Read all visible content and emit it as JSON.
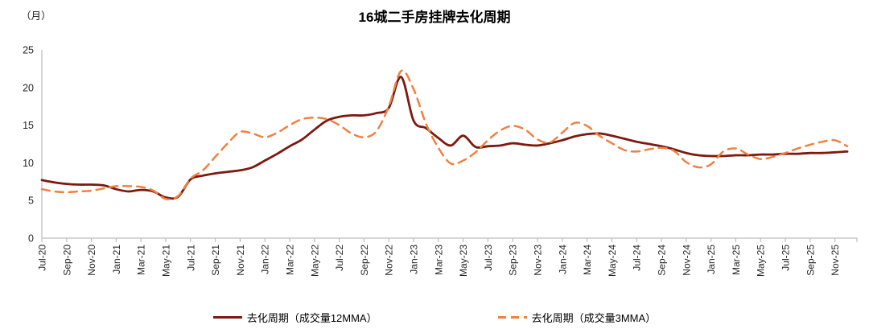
{
  "chart": {
    "title": "16城二手房挂牌去化周期",
    "unit_label": "（月）"
  },
  "colors": {
    "series_12mma": "#7B1A10",
    "series_3mma": "#EE8143",
    "axis": "#BFBFBF",
    "tick_text": "#262626",
    "title_text": "#000000"
  },
  "chart_data": {
    "type": "line",
    "title": "16城二手房挂牌去化周期",
    "xlabel": "",
    "ylabel": "（月）",
    "ylim": [
      0,
      25
    ],
    "yticks": [
      0,
      5,
      10,
      15,
      20,
      25
    ],
    "grid": false,
    "legend_position": "bottom",
    "xtick_labels": [
      "Jul-20",
      "Sep-20",
      "Nov-20",
      "Jan-21",
      "Mar-21",
      "May-21",
      "Jul-21",
      "Sep-21",
      "Nov-21",
      "Jan-22",
      "Mar-22",
      "May-22",
      "Jul-22",
      "Sep-22",
      "Nov-22",
      "Jan-23",
      "Mar-23",
      "May-23",
      "Jul-23",
      "Sep-23",
      "Nov-23",
      "Jan-24",
      "Mar-24",
      "May-24",
      "Jul-24",
      "Sep-24",
      "Nov-24",
      "Jan-25",
      "Mar-25",
      "May-25",
      "Jul-25",
      "Sep-25",
      "Nov-25"
    ],
    "x": [
      "Jul-20",
      "Aug-20",
      "Sep-20",
      "Oct-20",
      "Nov-20",
      "Dec-20",
      "Jan-21",
      "Feb-21",
      "Mar-21",
      "Apr-21",
      "May-21",
      "Jun-21",
      "Jul-21",
      "Aug-21",
      "Sep-21",
      "Oct-21",
      "Nov-21",
      "Dec-21",
      "Jan-22",
      "Feb-22",
      "Mar-22",
      "Apr-22",
      "May-22",
      "Jun-22",
      "Jul-22",
      "Aug-22",
      "Sep-22",
      "Oct-22",
      "Nov-22",
      "Dec-22",
      "Jan-23",
      "Feb-23",
      "Mar-23",
      "Apr-23",
      "May-23",
      "Jun-23",
      "Jul-23",
      "Aug-23",
      "Sep-23",
      "Oct-23",
      "Nov-23",
      "Dec-23",
      "Jan-24",
      "Feb-24",
      "Mar-24",
      "Apr-24",
      "May-24",
      "Jun-24",
      "Jul-24",
      "Aug-24",
      "Sep-24",
      "Oct-24",
      "Nov-24",
      "Dec-24",
      "Jan-25",
      "Feb-25",
      "Mar-25",
      "Apr-25",
      "May-25",
      "Jun-25",
      "Jul-25",
      "Aug-25",
      "Sep-25",
      "Oct-25",
      "Nov-25",
      "Dec-25"
    ],
    "series": [
      {
        "name": "去化周期（成交量12MMA）",
        "style": "solid",
        "values": [
          7.7,
          7.4,
          7.2,
          7.1,
          7.1,
          7.0,
          6.5,
          6.2,
          6.4,
          6.2,
          5.4,
          5.5,
          7.8,
          8.3,
          8.6,
          8.8,
          9.0,
          9.4,
          10.3,
          11.2,
          12.2,
          13.1,
          14.4,
          15.6,
          16.1,
          16.3,
          16.3,
          16.6,
          17.3,
          21.4,
          15.6,
          14.6,
          13.3,
          12.3,
          13.6,
          12.1,
          12.2,
          12.3,
          12.6,
          12.4,
          12.3,
          12.6,
          13.0,
          13.5,
          13.8,
          13.9,
          13.6,
          13.2,
          12.8,
          12.5,
          12.2,
          11.8,
          11.3,
          11.0,
          10.9,
          10.9,
          11.0,
          11.0,
          11.1,
          11.1,
          11.2,
          11.2,
          11.3,
          11.3,
          11.4,
          11.5
        ]
      },
      {
        "name": "去化周期（成交量3MMA）",
        "style": "dashed",
        "values": [
          6.5,
          6.2,
          6.1,
          6.2,
          6.3,
          6.6,
          6.9,
          6.9,
          6.8,
          6.3,
          5.2,
          5.6,
          7.9,
          9.0,
          10.8,
          12.6,
          14.1,
          13.9,
          13.4,
          14.0,
          15.0,
          15.8,
          16.0,
          15.8,
          15.0,
          13.9,
          13.4,
          14.2,
          17.5,
          22.2,
          19.8,
          15.2,
          12.0,
          9.9,
          10.3,
          11.4,
          13.0,
          14.3,
          14.9,
          14.4,
          13.1,
          12.7,
          14.0,
          15.3,
          14.9,
          13.6,
          12.6,
          11.7,
          11.5,
          11.8,
          12.0,
          11.6,
          10.1,
          9.4,
          9.8,
          11.5,
          11.9,
          11.1,
          10.5,
          10.8,
          11.3,
          11.9,
          12.4,
          12.8,
          13.0,
          12.2
        ]
      }
    ]
  }
}
